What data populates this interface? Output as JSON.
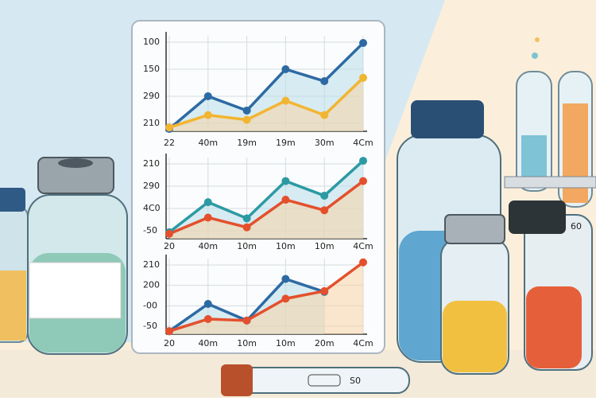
{
  "panels": [
    {
      "y_labels": [
        "100",
        "150",
        "290",
        "210"
      ],
      "x_labels": [
        "22",
        "40m",
        "19m",
        "19m",
        "30m",
        "4Cm"
      ],
      "lines": [
        {
          "color": "#2d6aa3",
          "values": [
            2.5,
            36.7,
            21.7,
            65,
            52.5,
            92.5
          ]
        },
        {
          "color": "#f2b531",
          "values": [
            4,
            17,
            12,
            32,
            17,
            56
          ]
        }
      ]
    },
    {
      "y_labels": [
        "210",
        "290",
        "4C0",
        "-50"
      ],
      "x_labels": [
        "20",
        "40m",
        "10m",
        "10m",
        "10m",
        "4Cm"
      ],
      "lines": [
        {
          "color": "#2c9aa3",
          "values": [
            8,
            45,
            25,
            71,
            53,
            96
          ]
        },
        {
          "color": "#e4502d",
          "values": [
            6,
            26,
            14,
            48,
            35,
            71
          ]
        }
      ]
    },
    {
      "y_labels": [
        "210",
        "200",
        "-00",
        "-50"
      ],
      "x_labels": [
        "20",
        "40m",
        "10m",
        "10m",
        "20m",
        "4Cm"
      ],
      "lines": [
        {
          "color": "#2d6aa3",
          "values": [
            4,
            40,
            18,
            73,
            56,
            null
          ]
        },
        {
          "color": "#e4502d",
          "values": [
            4,
            20,
            18,
            47,
            57,
            95
          ]
        }
      ]
    }
  ],
  "tube_label": "S0",
  "bottle_label": "60"
}
